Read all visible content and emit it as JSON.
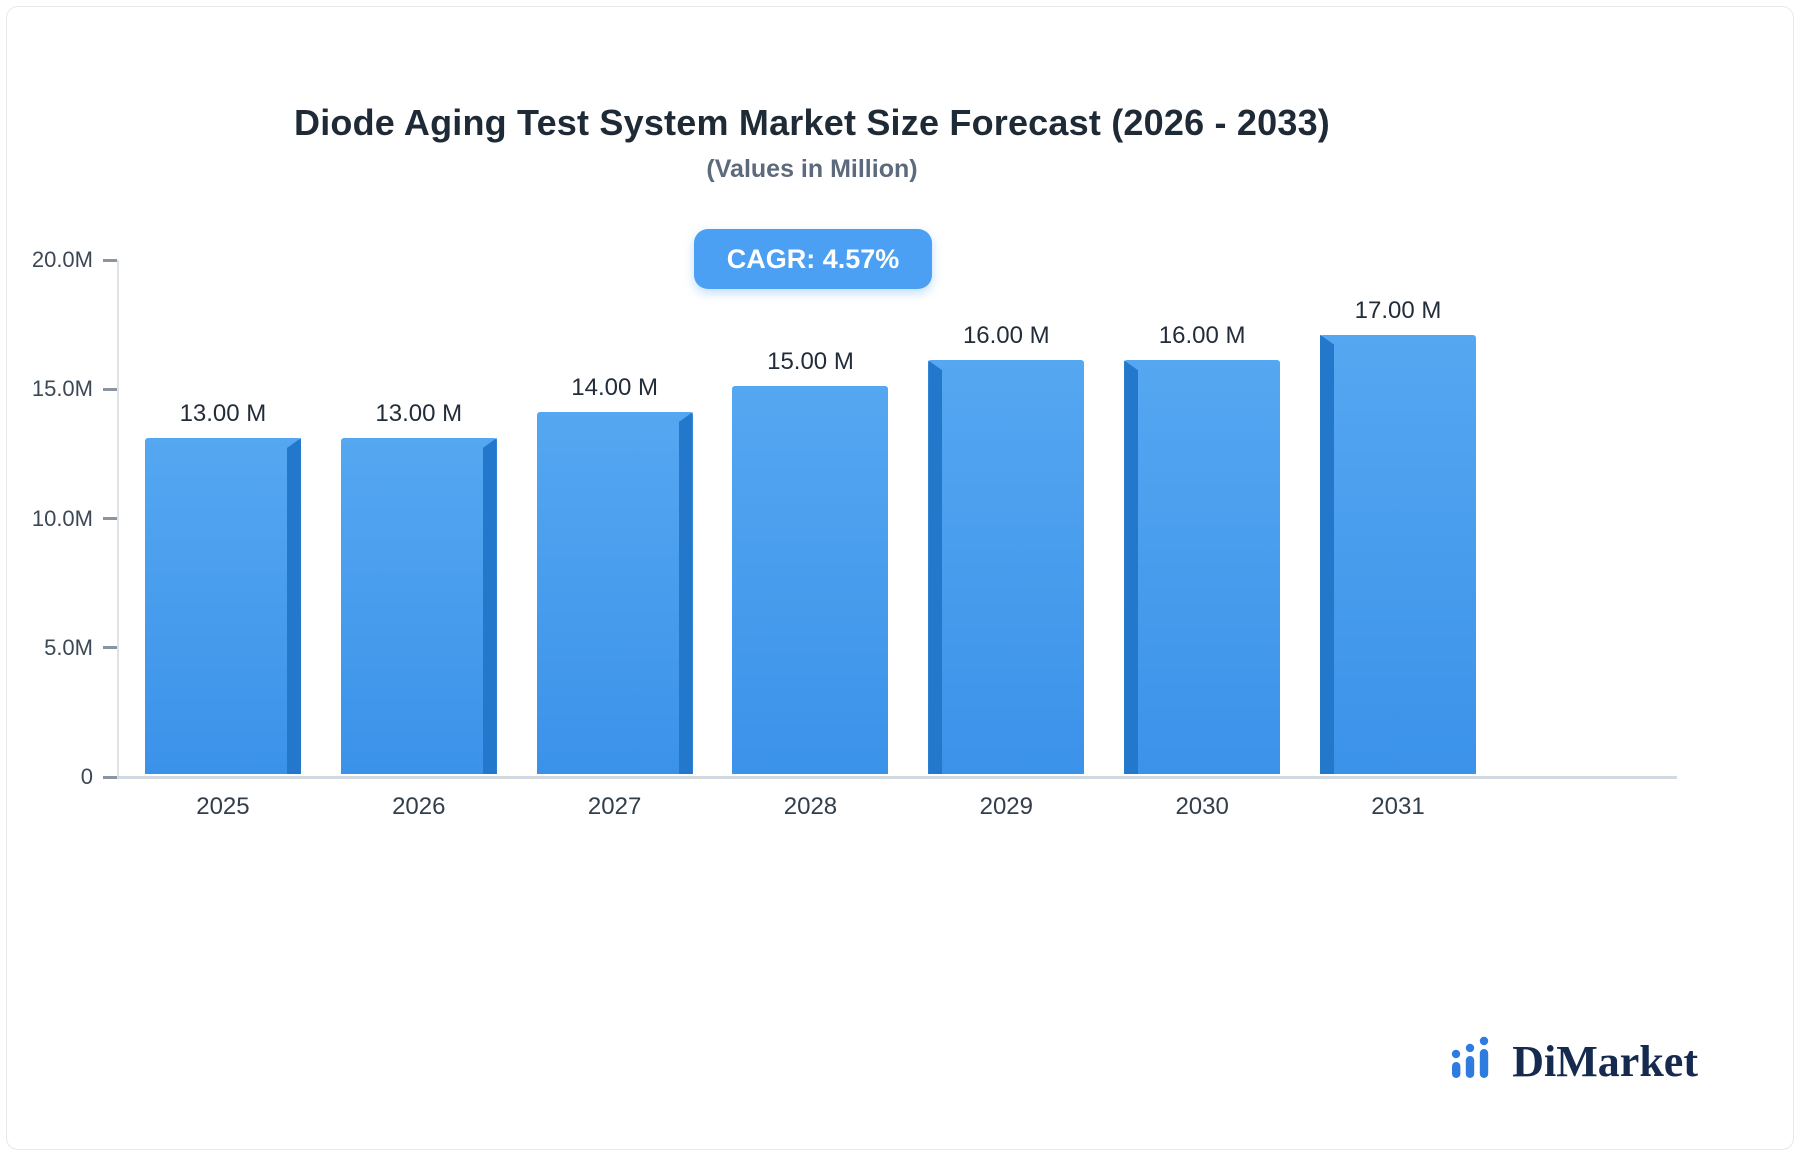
{
  "header": {
    "title": "Diode Aging Test System Market Size Forecast (2026 - 2033)",
    "subtitle": "(Values in Million)"
  },
  "badge": {
    "label": "CAGR: 4.57%",
    "bg_color": "#4BA0F4",
    "text_color": "#FFFFFF"
  },
  "chart_data": {
    "type": "bar",
    "title": "Diode Aging Test System Market Size Forecast (2026 - 2033)",
    "subtitle": "(Values in Million)",
    "unit": "Million",
    "categories": [
      "2025",
      "2026",
      "2027",
      "2028",
      "2029",
      "2030",
      "2031"
    ],
    "values": [
      13,
      13,
      14,
      15,
      16,
      16,
      17
    ],
    "bar_labels": [
      "13.00 M",
      "13.00 M",
      "14.00 M",
      "15.00 M",
      "16.00 M",
      "16.00 M",
      "17.00 M"
    ],
    "ylim": [
      0,
      20
    ],
    "yticks": [
      {
        "value": 20,
        "label": "20.0M"
      },
      {
        "value": 15,
        "label": "15.0M"
      },
      {
        "value": 10,
        "label": "10.0M"
      },
      {
        "value": 5,
        "label": "5.0M"
      },
      {
        "value": 0,
        "label": "0"
      }
    ],
    "xlabel": "",
    "ylabel": "",
    "legend": "none",
    "grid": "off",
    "bar_color_top": "#55A7F1",
    "bar_color_bottom": "#3B92E9",
    "bar_side_color": "#2478CB",
    "axis_color": "#dfe3e8"
  },
  "logo": {
    "text": "DiMarket",
    "text_color": "#152A4E",
    "accent_color": "#2E7CE0"
  }
}
